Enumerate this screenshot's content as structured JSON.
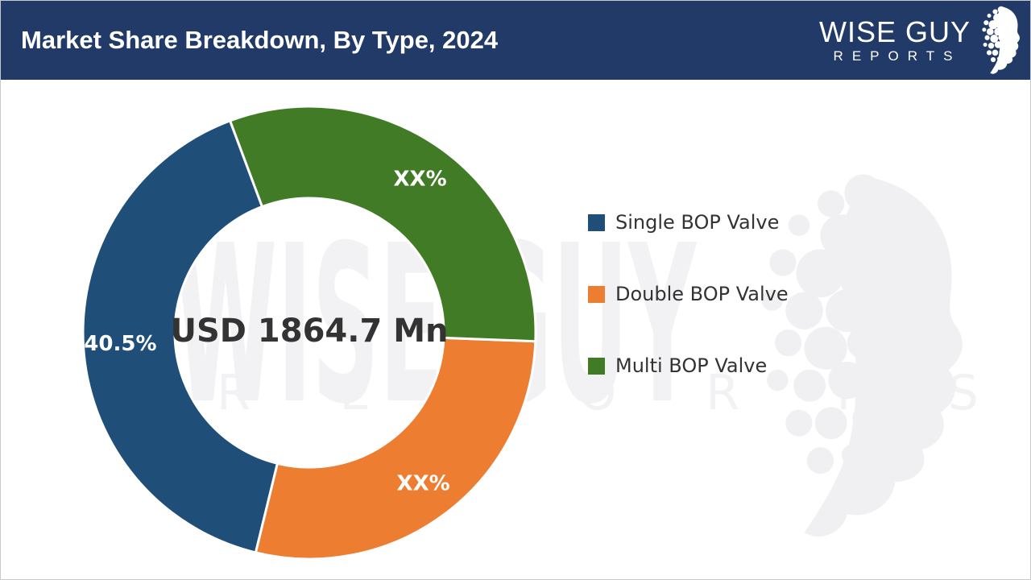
{
  "header": {
    "title": "Market Share Breakdown, By Type, 2024",
    "background_color": "#213A67",
    "logo": {
      "line1": "WISE GUY",
      "line2": "REPORTS"
    }
  },
  "chart_data": {
    "type": "donut",
    "title": "Market Share Breakdown, By Type, 2024",
    "center_label": "USD 1864.7 Mn",
    "start_angle_deg": 110.5,
    "direction": "counterclockwise",
    "legend_position": "right",
    "grid": false,
    "segments": [
      {
        "name": "Single BOP Valve",
        "value_pct": 40.5,
        "display_label": "40.5%",
        "color": "#1F4E79"
      },
      {
        "name": "Double BOP Valve",
        "value_pct": 28.2,
        "display_label": "XX%",
        "color": "#ED7D31"
      },
      {
        "name": "Multi BOP Valve",
        "value_pct": 31.3,
        "display_label": "XX%",
        "color": "#427B26"
      }
    ],
    "slice_label_color": "#ffffff",
    "center_label_color": "#333333"
  },
  "watermark": {
    "line1": "WISE GUY",
    "line2": "R E P O R T S"
  }
}
